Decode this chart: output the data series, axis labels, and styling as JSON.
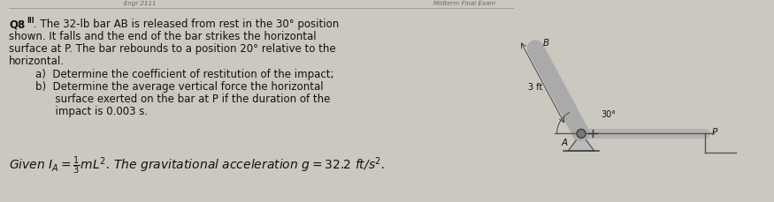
{
  "bg_color": "#cbc8c0",
  "text_color": "#111111",
  "header_left": "Engr 2111",
  "header_right": "Midterm Final Exam",
  "q_bold": "Q8",
  "q_super": "III",
  "line1": ". The 32-lb bar AB is released from rest in the 30° position",
  "line2": "shown. It falls and the end of the bar strikes the horizontal",
  "line3": "surface at P. The bar rebounds to a position 20° relative to the",
  "line4": "horizontal.",
  "part_a": "a)  Determine the coefficient of restitution of the impact;",
  "part_b1": "b)  Determine the average vertical force the horizontal",
  "part_b2": "      surface exerted on the bar at P if the duration of the",
  "part_b3": "      impact is 0.003 s.",
  "given": "Given $I_A = \\frac{1}{3}mL^2$. The gravitational acceleration $g = 32.2$ ft/s$^2$.",
  "bar_color": "#aaaaaa",
  "dark_color": "#555555",
  "pivot_color": "#333333"
}
